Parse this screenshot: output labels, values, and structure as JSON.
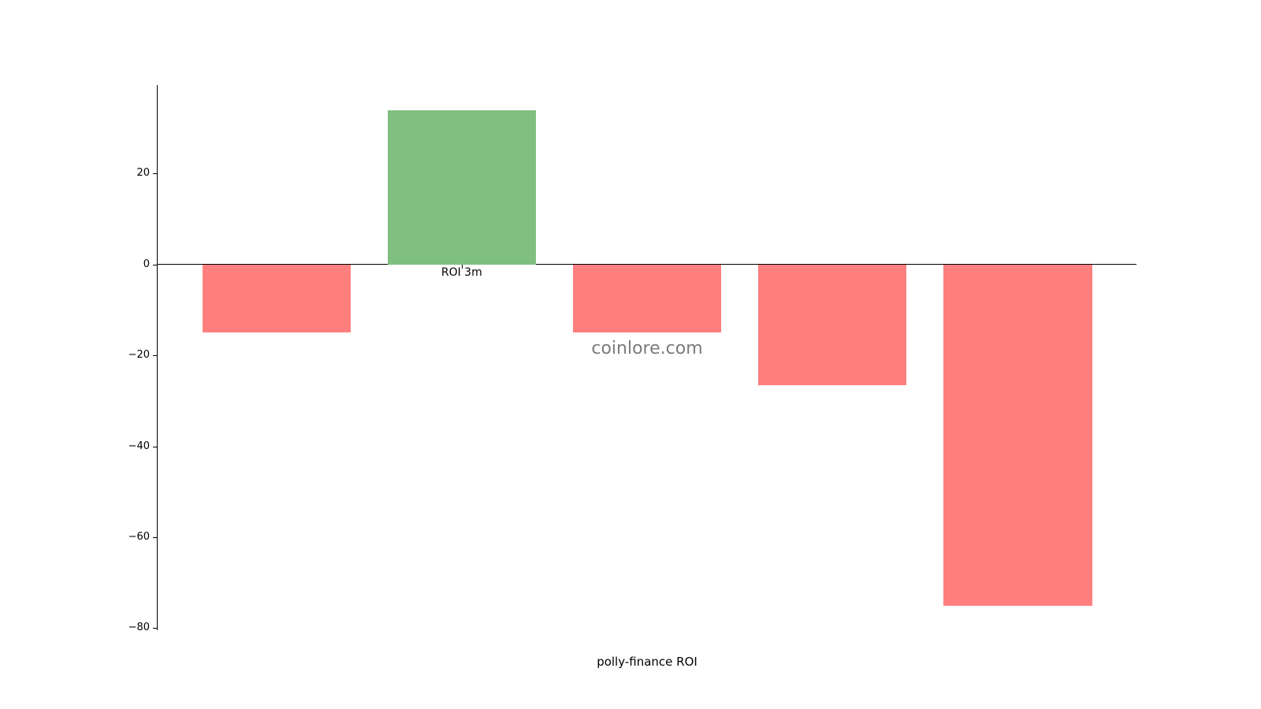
{
  "watermark": {
    "text": "coinlore.com",
    "color": "#7b7b7b"
  },
  "chart_data": {
    "type": "bar",
    "title": "",
    "xlabel": "polly-finance ROI",
    "ylabel": "",
    "categories": [
      "",
      "ROI 3m",
      "",
      "",
      ""
    ],
    "values": [
      -15,
      34,
      -15,
      -26.5,
      -75
    ],
    "x_tick": {
      "index": 1,
      "label": "ROI 3m"
    },
    "yticks": [
      20,
      0,
      -20,
      -40,
      -60,
      -80
    ],
    "ytick_labels": [
      "20",
      "0",
      "−20",
      "−40",
      "−60",
      "−80"
    ],
    "ylim": [
      -80.45,
      39.45
    ],
    "xlim": [
      -0.64,
      4.64
    ],
    "bar_width": 0.8,
    "colors": {
      "positive": "#7fbf7f",
      "negative": "#ff7f7f",
      "axis": "#000000"
    },
    "grid": false,
    "legend": null
  }
}
